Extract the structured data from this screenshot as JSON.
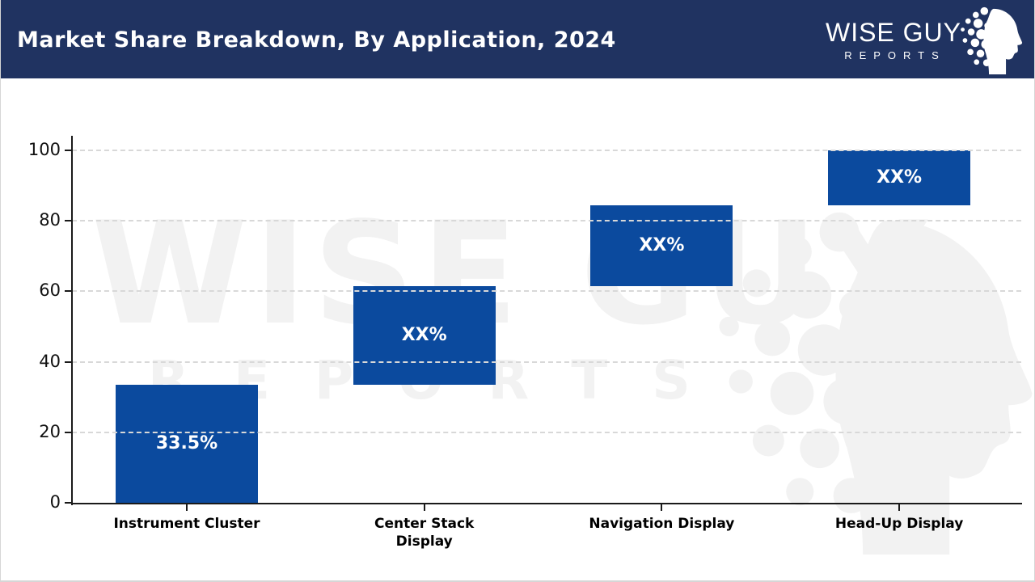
{
  "header": {
    "title": "Market Share Breakdown, By Application, 2024",
    "bg_color": "#203361",
    "logo": {
      "line1": "WISE GUY",
      "line2": "REPORTS"
    }
  },
  "watermark": {
    "line1": "WISE GUY",
    "line2": "REPORTS"
  },
  "chart_data": {
    "type": "bar",
    "subtype": "waterfall",
    "title": "Market Share Breakdown, By Application, 2024",
    "categories": [
      "Instrument Cluster",
      "Center Stack Display",
      "Navigation Display",
      "Head-Up Display"
    ],
    "category_lines": [
      [
        "Instrument Cluster"
      ],
      [
        "Center Stack",
        "Display"
      ],
      [
        "Navigation Display"
      ],
      [
        "Head-Up Display"
      ]
    ],
    "segments": [
      {
        "category": "Instrument Cluster",
        "start": 0,
        "end": 33.5,
        "label": "33.5%"
      },
      {
        "category": "Center Stack Display",
        "start": 33.5,
        "end": 61.5,
        "label": "XX%"
      },
      {
        "category": "Navigation Display",
        "start": 61.5,
        "end": 84.5,
        "label": "XX%"
      },
      {
        "category": "Head-Up Display",
        "start": 84.5,
        "end": 100,
        "label": "XX%"
      }
    ],
    "ylim": [
      0,
      100
    ],
    "yticks": [
      0,
      20,
      40,
      60,
      80,
      100
    ],
    "grid": "horizontal-dashed",
    "grid_color": "#d8d8d8",
    "bar_color": "#0b4a9e",
    "bar_label_color": "#ffffff",
    "axis_color": "#1a1a1a",
    "legend": "none"
  }
}
